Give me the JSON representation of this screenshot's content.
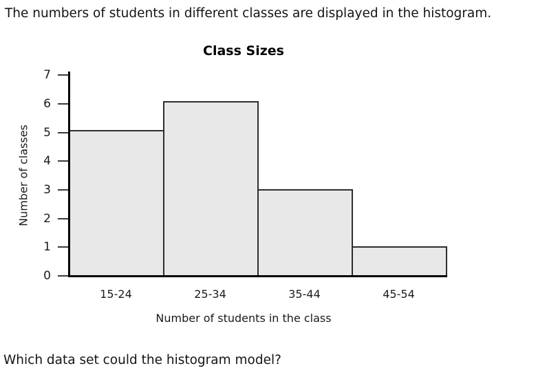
{
  "page": {
    "intro_text": "The numbers of students in different classes are displayed in the histogram.",
    "question_text": "Which data set could the histogram model?"
  },
  "chart_data": {
    "type": "bar",
    "subtype": "histogram",
    "title": "Class Sizes",
    "xlabel": "Number of students in the class",
    "ylabel": "Number of classes",
    "categories": [
      "15-24",
      "25-34",
      "35-44",
      "45-54"
    ],
    "values": [
      5,
      6,
      3,
      1
    ],
    "rendered_bar_heights_units": [
      5.07,
      6.07,
      3,
      1
    ],
    "ylim": [
      0,
      7
    ],
    "yticks": [
      0,
      1,
      2,
      3,
      4,
      5,
      6,
      7
    ],
    "grid": false,
    "legend": false,
    "colors": {
      "bar_fill": "#e8e8e8",
      "bar_border": "#2d2d2d",
      "axis": "#000000",
      "tick_mark": "#3a3a3a",
      "text": "#111111"
    }
  }
}
